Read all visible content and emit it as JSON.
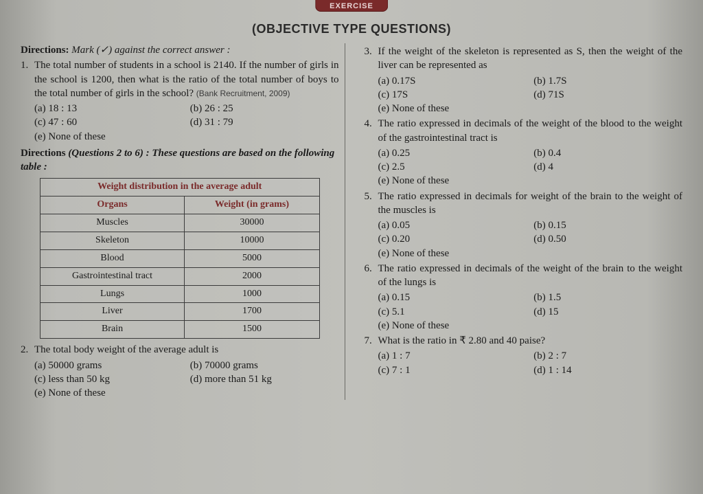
{
  "top_pill": "EXERCISE",
  "section_title": "(OBJECTIVE TYPE QUESTIONS)",
  "directions_label": "Directions:",
  "directions_text": "Mark (✓) against the correct answer :",
  "source_note": "(Bank Recruitment, 2009)",
  "q1": {
    "num": "1.",
    "text": "The total number of students in a school is 2140. If the number of girls in the school is 1200, then what is the ratio of the total number of boys to the total number of girls in the school?",
    "choices": {
      "a": "(a) 18 : 13",
      "b": "(b) 26 : 25",
      "c": "(c) 47 : 60",
      "d": "(d) 31 : 79",
      "e": "(e) None of these"
    }
  },
  "sub_dir_label": "Directions",
  "sub_dir_range": "(Questions 2 to 6) :",
  "sub_dir_text": "These questions are based on the following table :",
  "table": {
    "title": "Weight distribution in the average adult",
    "col1": "Organs",
    "col2": "Weight (in grams)",
    "rows": [
      [
        "Muscles",
        "30000"
      ],
      [
        "Skeleton",
        "10000"
      ],
      [
        "Blood",
        "5000"
      ],
      [
        "Gastrointestinal tract",
        "2000"
      ],
      [
        "Lungs",
        "1000"
      ],
      [
        "Liver",
        "1700"
      ],
      [
        "Brain",
        "1500"
      ]
    ]
  },
  "q2": {
    "num": "2.",
    "text": "The total body weight of the average adult is",
    "choices": {
      "a": "(a) 50000 grams",
      "b": "(b) 70000 grams",
      "c": "(c) less than 50 kg",
      "d": "(d) more than 51 kg",
      "e": "(e) None of these"
    }
  },
  "q3": {
    "num": "3.",
    "text": "If the weight of the skeleton is represented as S, then the weight of the liver can be represented as",
    "choices": {
      "a": "(a) 0.17S",
      "b": "(b) 1.7S",
      "c": "(c) 17S",
      "d": "(d) 71S",
      "e": "(e) None of these"
    }
  },
  "q4": {
    "num": "4.",
    "text": "The ratio expressed in decimals of the weight of the blood to the weight of the gastrointestinal tract is",
    "choices": {
      "a": "(a) 0.25",
      "b": "(b) 0.4",
      "c": "(c) 2.5",
      "d": "(d) 4",
      "e": "(e) None of these"
    }
  },
  "q5": {
    "num": "5.",
    "text": "The ratio expressed in decimals for weight of the brain to the weight of the muscles is",
    "choices": {
      "a": "(a) 0.05",
      "b": "(b) 0.15",
      "c": "(c) 0.20",
      "d": "(d) 0.50",
      "e": "(e) None of these"
    }
  },
  "q6": {
    "num": "6.",
    "text": "The ratio expressed in decimals of the weight of the brain to the weight of the lungs is",
    "choices": {
      "a": "(a) 0.15",
      "b": "(b) 1.5",
      "c": "(c) 5.1",
      "d": "(d) 15",
      "e": "(e) None of these"
    }
  },
  "q7": {
    "num": "7.",
    "text": "What is the ratio in ₹ 2.80 and 40 paise?",
    "choices": {
      "a": "(a) 1 : 7",
      "b": "(b) 2 : 7",
      "c": "(c) 7 : 1",
      "d": "(d) 1 : 14"
    }
  }
}
